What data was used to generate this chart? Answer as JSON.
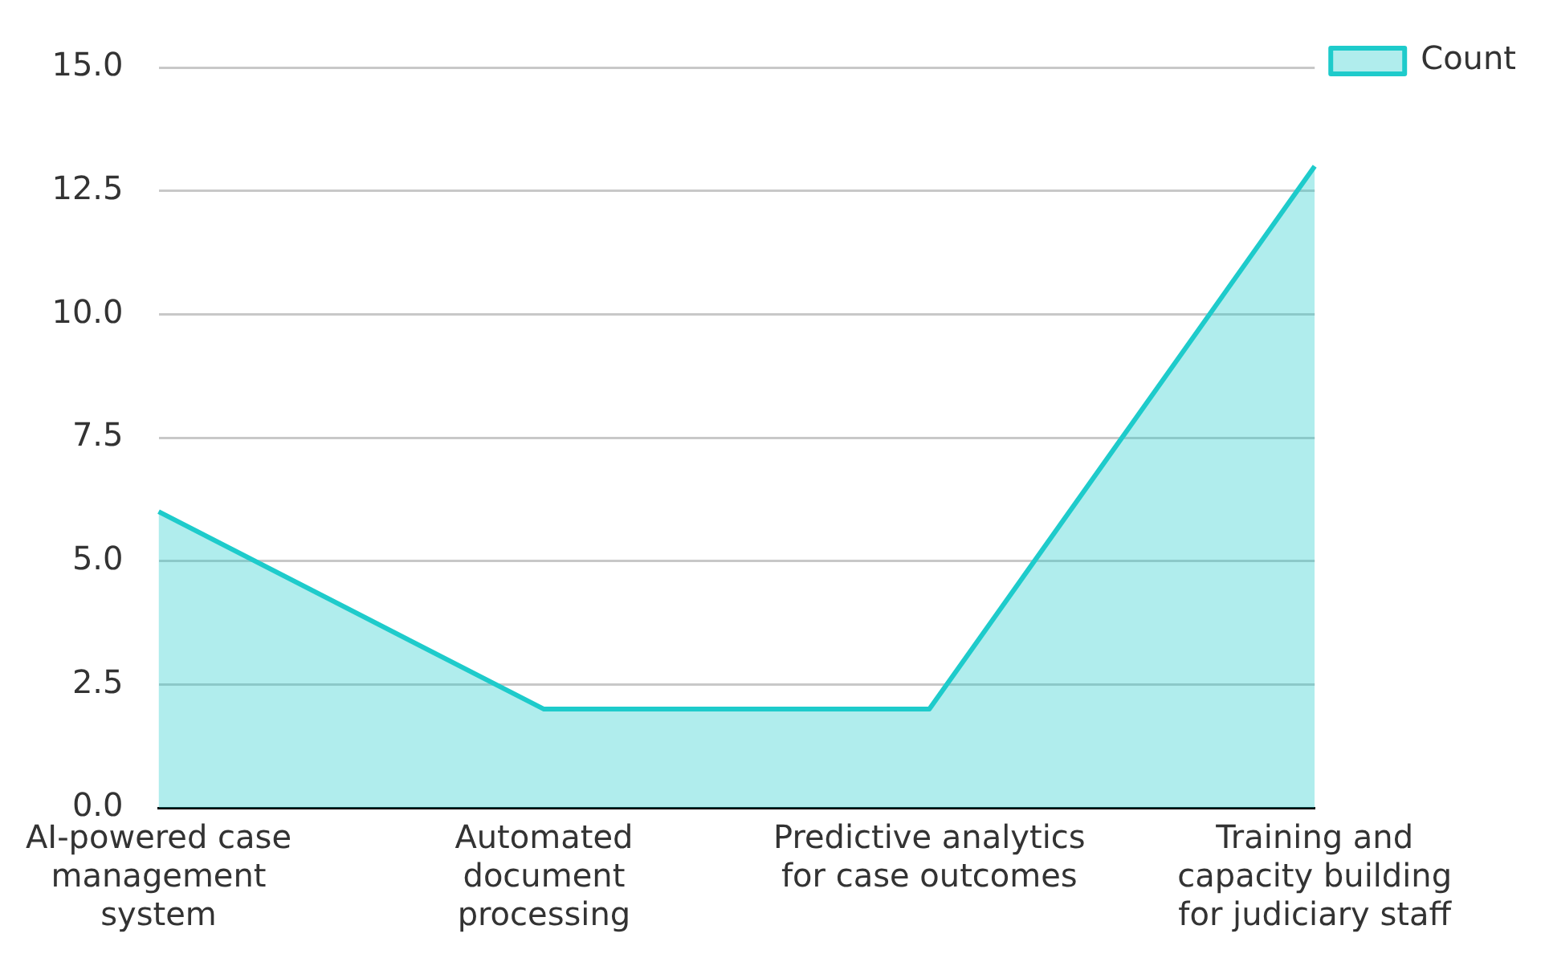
{
  "chart_data": {
    "type": "area",
    "categories": [
      "AI-powered case management system",
      "Automated document processing",
      "Predictive analytics for case outcomes",
      "Training and capacity building for judiciary staff"
    ],
    "series": [
      {
        "name": "Count",
        "color": "#1ecbcb",
        "values": [
          6,
          2,
          2,
          13
        ]
      }
    ],
    "ylim": [
      0,
      15
    ],
    "yticks": [
      {
        "value": 0,
        "label": "0.0"
      },
      {
        "value": 2.5,
        "label": "2.5"
      },
      {
        "value": 5,
        "label": "5.0"
      },
      {
        "value": 7.5,
        "label": "7.5"
      },
      {
        "value": 10,
        "label": "10.0"
      },
      {
        "value": 12.5,
        "label": "12.5"
      },
      {
        "value": 15,
        "label": "15.0"
      }
    ],
    "grid": "y",
    "legend": "top right"
  }
}
